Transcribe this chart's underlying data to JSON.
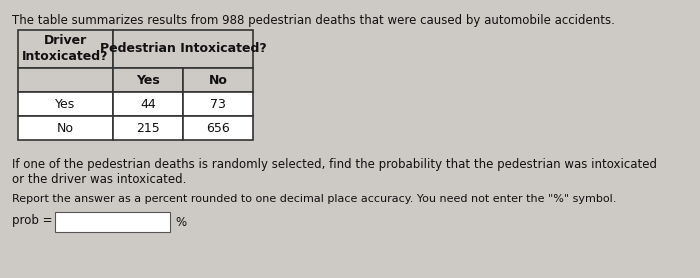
{
  "title": "The table summarizes results from 988 pedestrian deaths that were caused by automobile accidents.",
  "driver_line1": "Driver",
  "driver_line2": "Intoxicated?",
  "ped_header": "Pedestrian Intoxicated?",
  "yes_col": "Yes",
  "no_col": "No",
  "table_data": [
    [
      "Yes",
      "44",
      "73"
    ],
    [
      "No",
      "215",
      "656"
    ]
  ],
  "question_line1": "If one of the pedestrian deaths is randomly selected, find the probability that the pedestrian was intoxicated",
  "question_line2": "or the driver was intoxicated.",
  "report_text": "Report the answer as a percent rounded to one decimal place accuracy. You need not enter the \"%\" symbol.",
  "prob_label": "prob =",
  "percent_symbol": "%",
  "bg_color": "#cdc9c5",
  "cell_bg": "#cdc9c5",
  "white_cell": "#ffffff",
  "text_color": "#111111",
  "border_color": "#333333",
  "title_fontsize": 8.5,
  "body_fontsize": 8.5,
  "table_fontsize": 9.0
}
